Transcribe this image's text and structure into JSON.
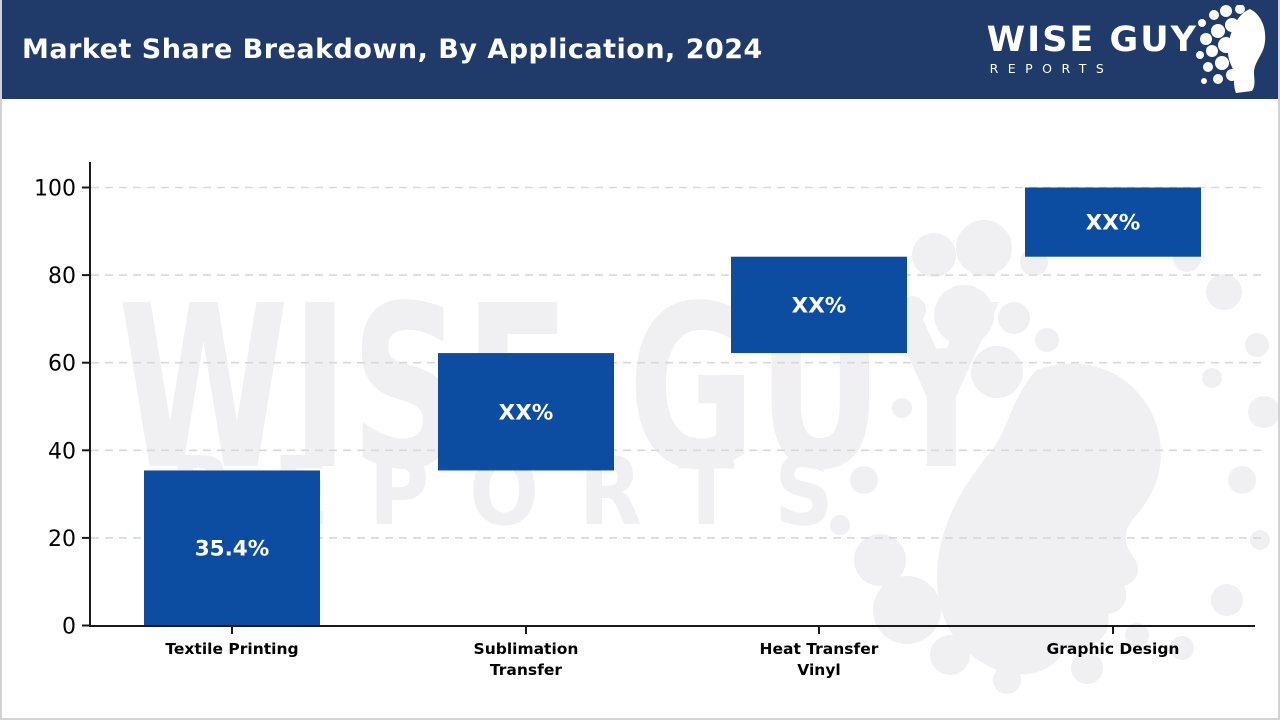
{
  "header": {
    "title": "Market Share Breakdown, By Application, 2024",
    "logo": {
      "line1": "WISE GUY",
      "line2": "REPORTS"
    }
  },
  "watermark": {
    "line1": "WISE GUY",
    "line2": "REPORTS"
  },
  "chart_data": {
    "type": "bar",
    "subtype": "waterfall",
    "title": "Market Share Breakdown, By Application, 2024",
    "xlabel": "",
    "ylabel": "",
    "categories": [
      "Textile Printing",
      "Sublimation Transfer",
      "Heat Transfer Vinyl",
      "Graphic Design"
    ],
    "category_lines": [
      [
        "Textile Printing"
      ],
      [
        "Sublimation",
        "Transfer"
      ],
      [
        "Heat Transfer",
        "Vinyl"
      ],
      [
        "Graphic Design"
      ]
    ],
    "series": [
      {
        "name": "Market Share (%)",
        "segments": [
          {
            "category": "Textile Printing",
            "start": 0,
            "end": 35.4,
            "label": "35.4%"
          },
          {
            "category": "Sublimation Transfer",
            "start": 35.4,
            "end": 62.2,
            "label": "XX%"
          },
          {
            "category": "Heat Transfer Vinyl",
            "start": 62.2,
            "end": 84.2,
            "label": "XX%"
          },
          {
            "category": "Graphic Design",
            "start": 84.2,
            "end": 100,
            "label": "XX%"
          }
        ]
      }
    ],
    "yticks": [
      0,
      20,
      40,
      60,
      80,
      100
    ],
    "ylim": [
      0,
      106
    ],
    "grid": "horizontal-dashed",
    "legend": "none",
    "bar_color": "#0c4da2",
    "bar_label_color": "#ffffff"
  },
  "colors": {
    "header_bg": "#203a69",
    "bar_blue": "#0c4da2",
    "gridline": "#d8d8d8",
    "watermark": "#f0f0f2",
    "page_border": "#d2d2d2"
  }
}
